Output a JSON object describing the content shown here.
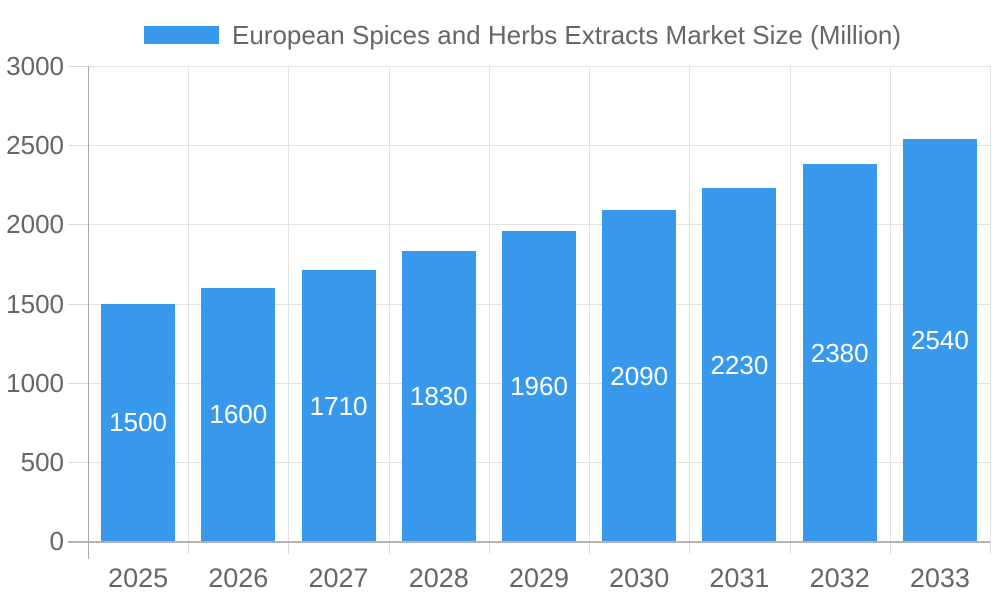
{
  "legend": {
    "title": "European Spices and Herbs Extracts Market Size (Million)"
  },
  "colors": {
    "bar": "#3899EC",
    "bar_label": "#ffffff",
    "axis_text": "#666666",
    "grid": "#e3e3e3",
    "tick": "#d9d9d9",
    "axis_line": "#b3b3b3"
  },
  "chart_data": {
    "type": "bar",
    "title": "European Spices and Herbs Extracts Market Size (Million)",
    "categories": [
      "2025",
      "2026",
      "2027",
      "2028",
      "2029",
      "2030",
      "2031",
      "2032",
      "2033"
    ],
    "values": [
      1500,
      1600,
      1710,
      1830,
      1960,
      2090,
      2230,
      2380,
      2540
    ],
    "series_name": "European Spices and Herbs Extracts Market Size (Million)",
    "xlabel": "",
    "ylabel": "",
    "ylim": [
      0,
      3000
    ],
    "yticks": [
      0,
      500,
      1000,
      1500,
      2000,
      2500,
      3000
    ],
    "grid": true,
    "legend_position": "top",
    "value_labels": "inside-center-white"
  }
}
